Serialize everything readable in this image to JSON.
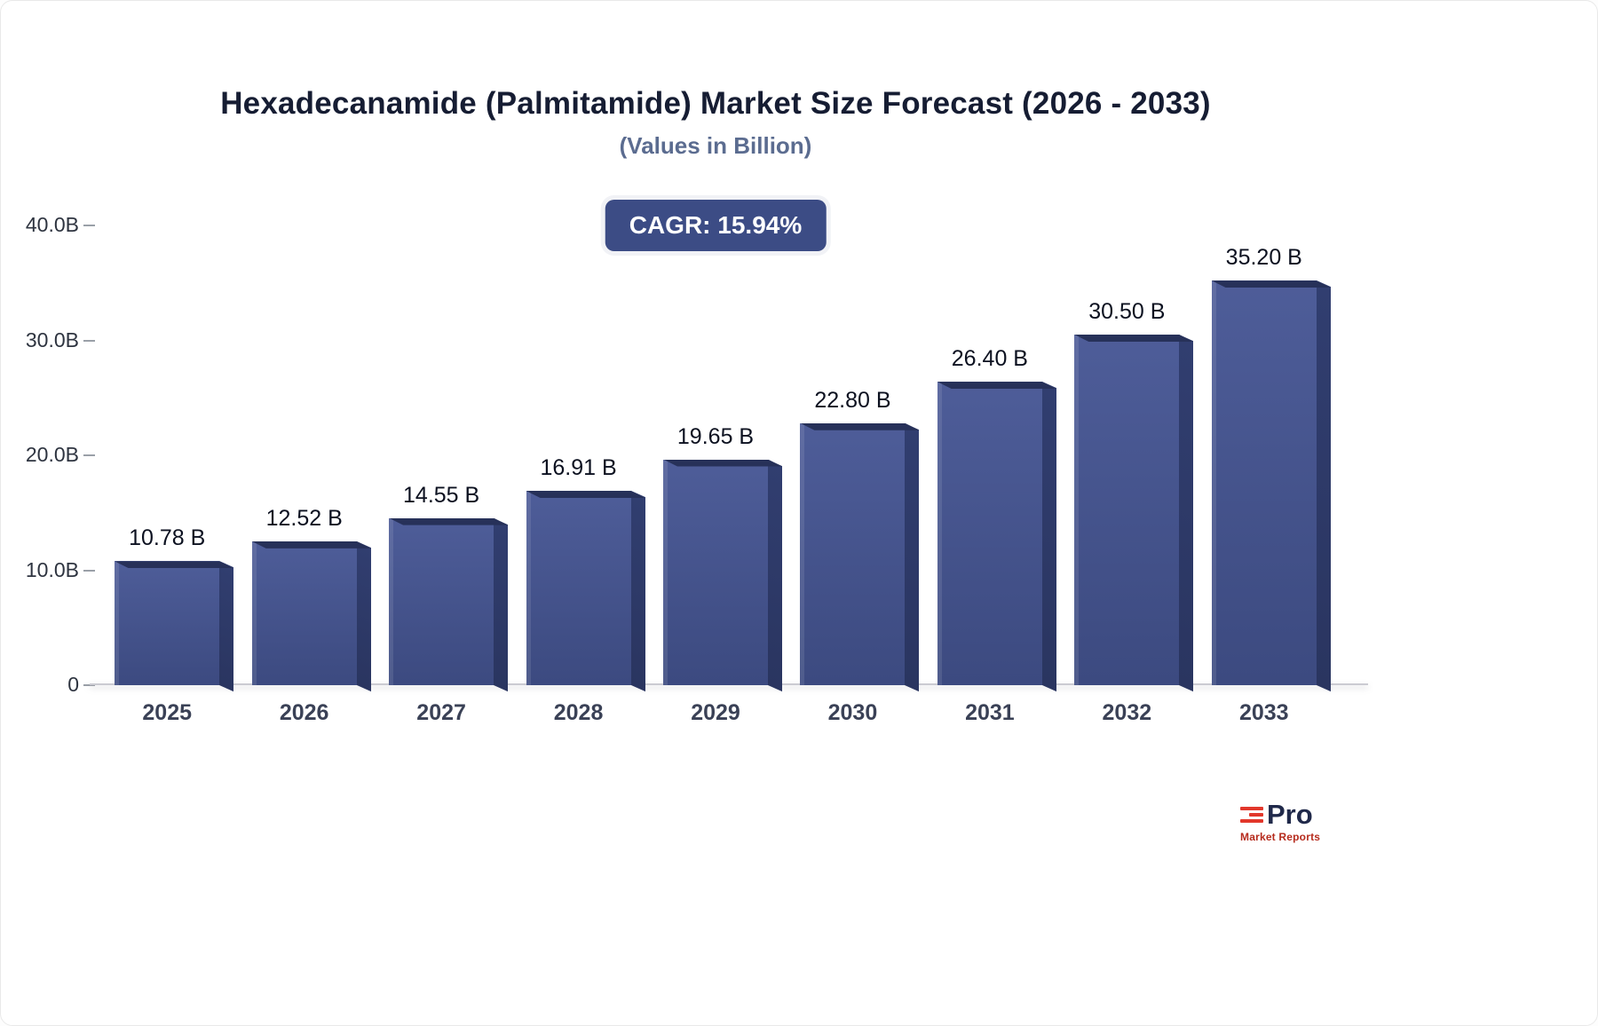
{
  "chart_data": {
    "type": "bar",
    "title": "Hexadecanamide (Palmitamide) Market Size Forecast (2026 - 2033)",
    "subtitle": "(Values in Billion)",
    "categories": [
      "2025",
      "2026",
      "2027",
      "2028",
      "2029",
      "2030",
      "2031",
      "2032",
      "2033"
    ],
    "values": [
      10.78,
      12.52,
      14.55,
      16.91,
      19.65,
      22.8,
      26.4,
      30.5,
      35.2
    ],
    "value_labels": [
      "10.78 B",
      "12.52 B",
      "14.55 B",
      "16.91 B",
      "19.65 B",
      "22.80 B",
      "26.40 B",
      "30.50 B",
      "35.20 B"
    ],
    "xlabel": "",
    "ylabel": "",
    "ylim": [
      0,
      40
    ],
    "yticks": [
      {
        "value": 0,
        "label": "0"
      },
      {
        "value": 10,
        "label": "10.0B"
      },
      {
        "value": 20,
        "label": "20.0B"
      },
      {
        "value": 30,
        "label": "30.0B"
      },
      {
        "value": 40,
        "label": "40.0B"
      }
    ],
    "grid": false,
    "legend": "none",
    "annotations": [
      "CAGR: 15.94%"
    ]
  },
  "logo": {
    "title": "Pro",
    "subtitle": "Market Reports"
  },
  "colors": {
    "badge-bg": "#3c4c85",
    "bar-front-top": "#4e5d99",
    "bar-front-bottom": "#3c4a80",
    "bar-side": "#313e70",
    "bar-top": "#273159",
    "logo-red": "#e2372b",
    "title": "#161d33",
    "subtitle": "#5b6c90"
  }
}
